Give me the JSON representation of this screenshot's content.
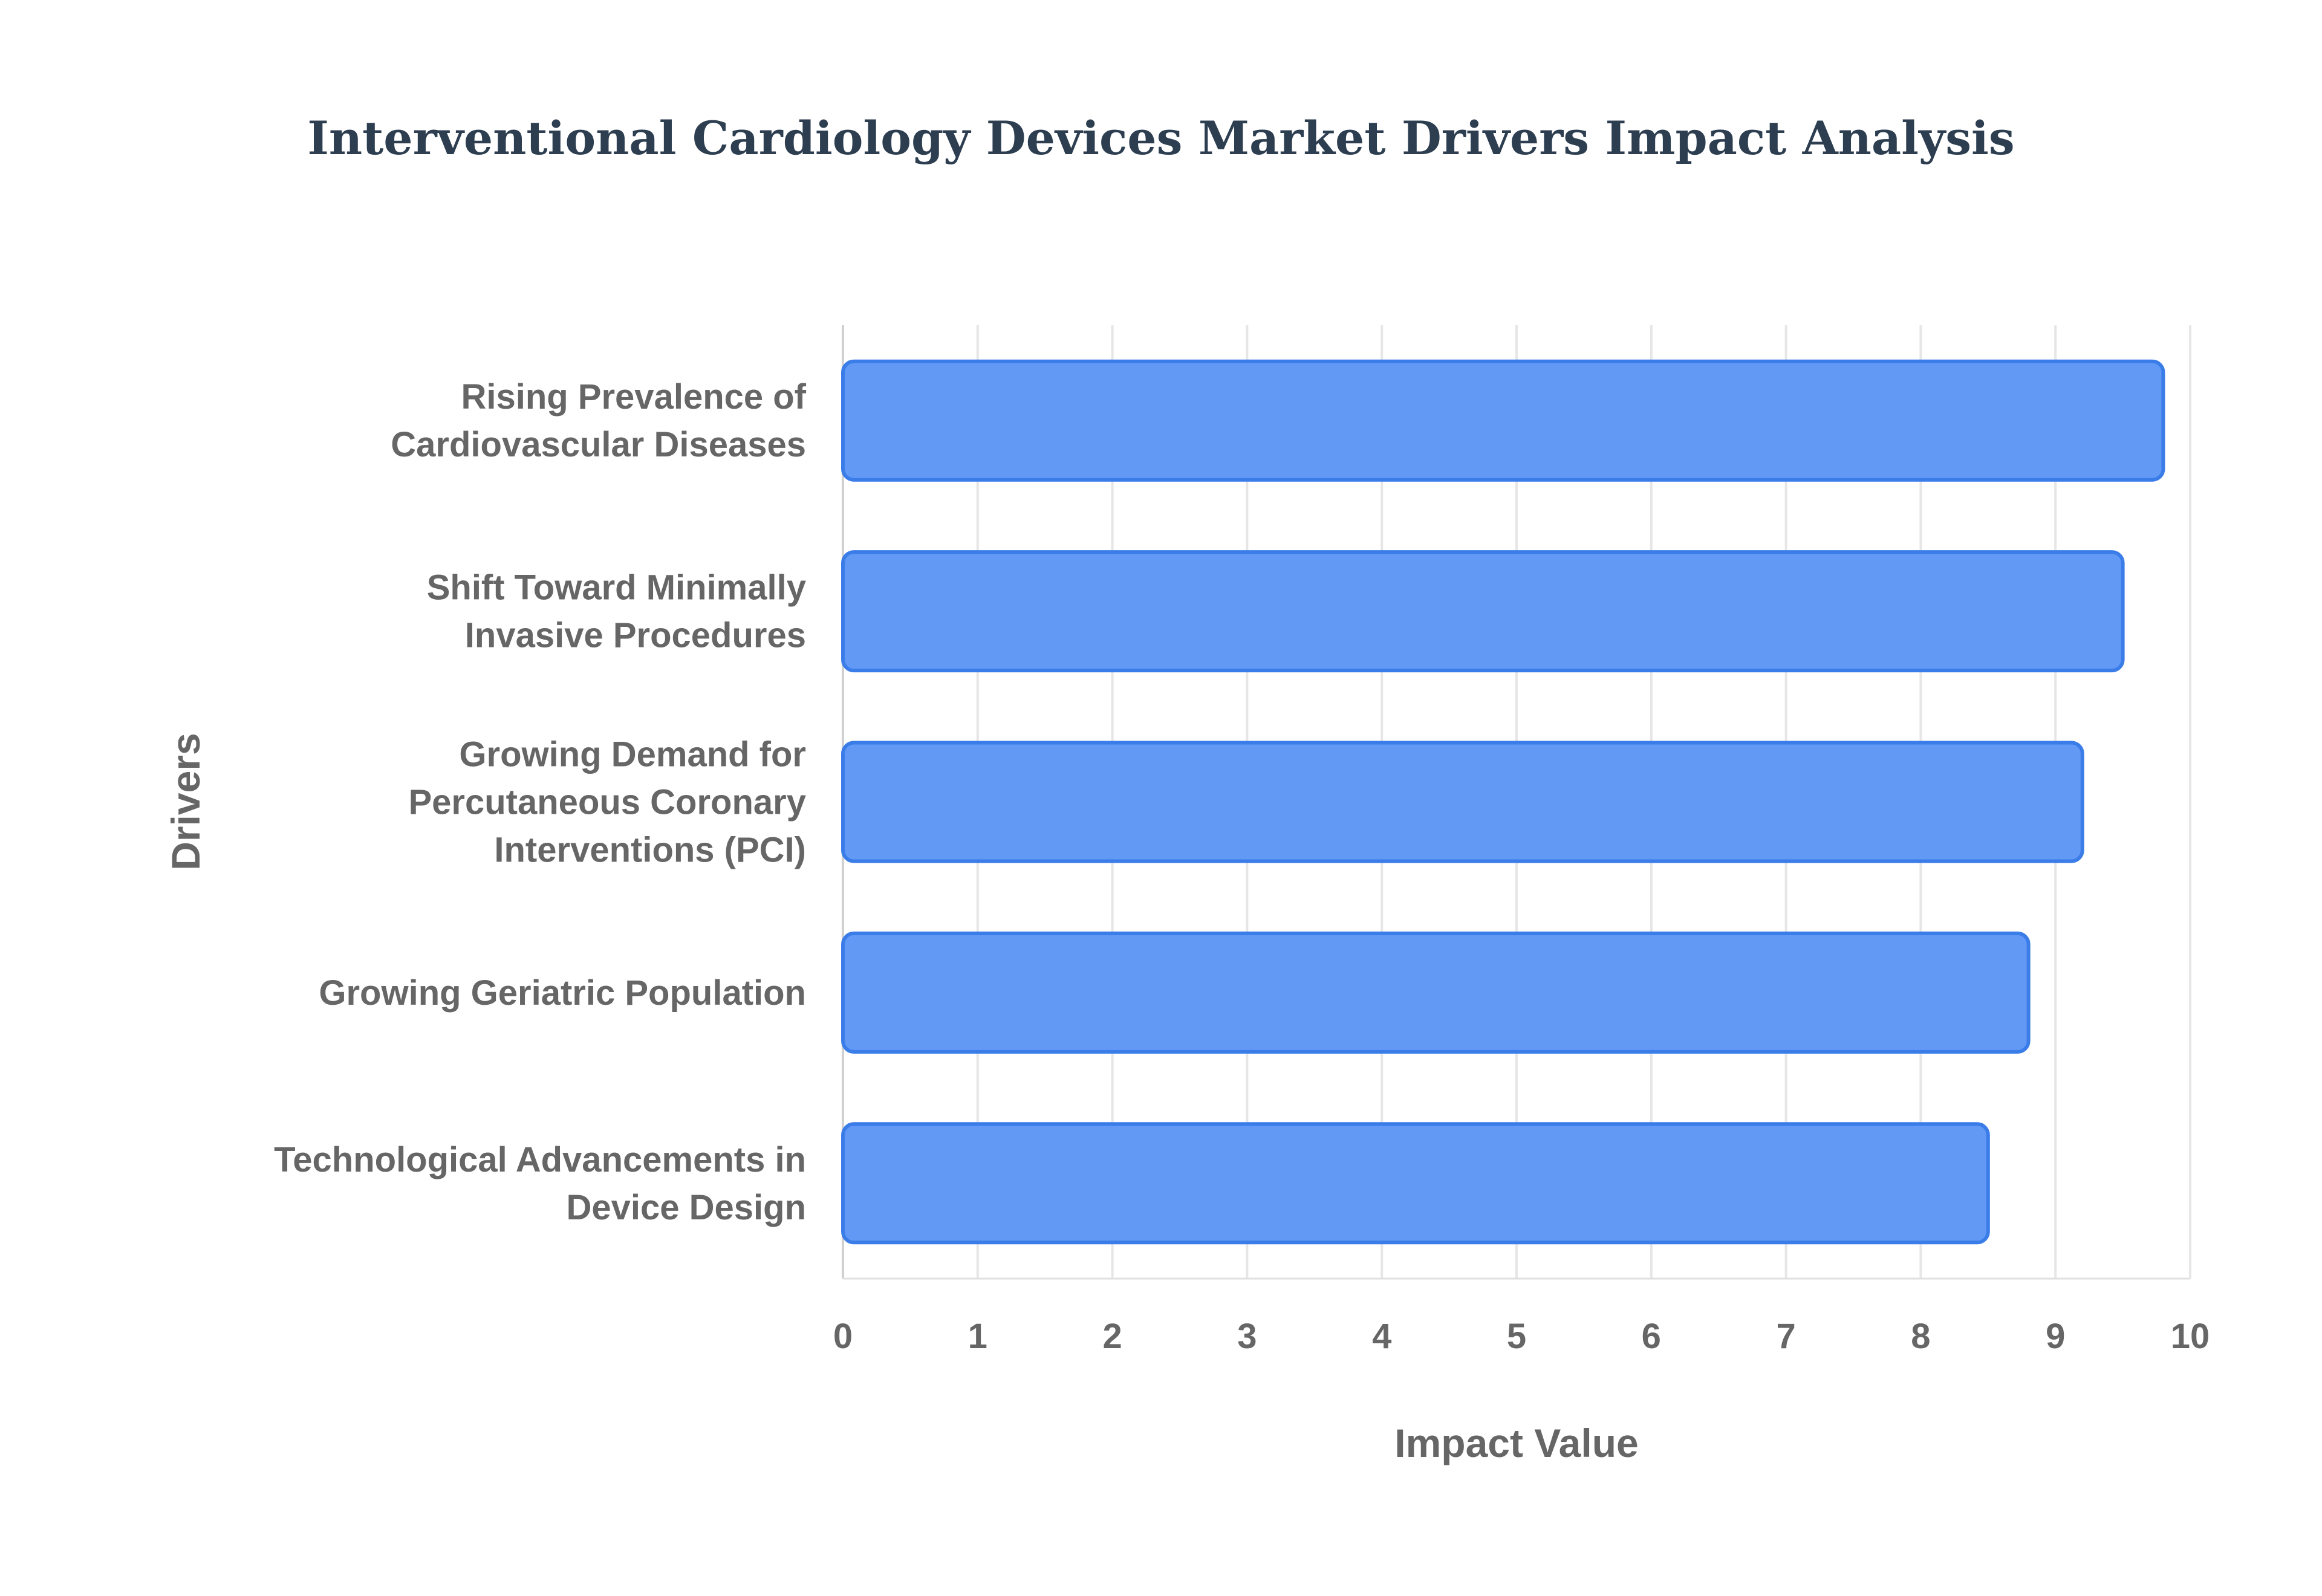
{
  "chart_data": {
    "type": "bar",
    "orientation": "horizontal",
    "title": "Interventional Cardiology Devices Market Drivers Impact Analysis",
    "xlabel": "Impact Value",
    "ylabel": "Drivers",
    "xlim": [
      0,
      10
    ],
    "xticks": [
      "0",
      "1",
      "2",
      "3",
      "4",
      "5",
      "6",
      "7",
      "8",
      "9",
      "10"
    ],
    "grid": true,
    "categories": [
      [
        "Rising Prevalence of",
        "Cardiovascular Diseases"
      ],
      [
        "Shift Toward Minimally",
        "Invasive Procedures"
      ],
      [
        "Growing Demand for",
        "Percutaneous Coronary",
        "Interventions (PCI)"
      ],
      [
        "Growing Geriatric Population"
      ],
      [
        "Technological Advancements in",
        "Device Design"
      ]
    ],
    "values": [
      9.8,
      9.5,
      9.2,
      8.8,
      8.5
    ],
    "colors": {
      "bar_fill": "#6199f5",
      "bar_stroke": "#3b7de8",
      "grid": "#e6e6e6",
      "title": "#2c3e50",
      "text": "#666666"
    }
  }
}
